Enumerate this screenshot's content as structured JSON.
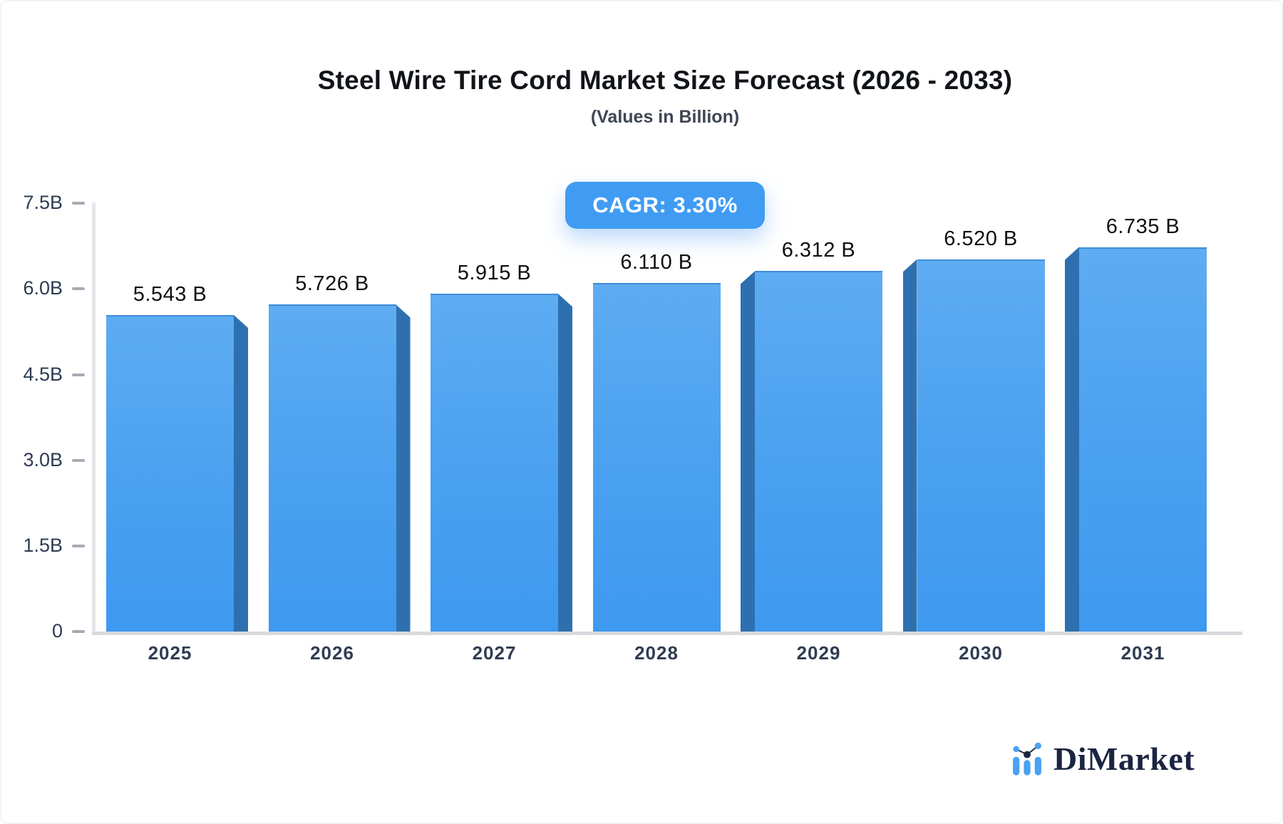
{
  "header": {
    "title": "Steel Wire Tire Cord Market Size Forecast (2026 - 2033)",
    "subtitle": "(Values in Billion)",
    "cagr_badge": "CAGR: 3.30%"
  },
  "footer": {
    "brand": "DiMarket",
    "brand_icon": "bar-chart-trend-icon"
  },
  "colors": {
    "bar_face_top": "#5EACF2",
    "bar_face_bottom": "#3E99F0",
    "bar_side": "#2E70AF",
    "badge_bg": "#409CF3",
    "axis_gray": "#D8DADE",
    "tick_text": "#2E3B52",
    "brand_navy": "#1B2540",
    "logo_blue": "#4BA1F2"
  },
  "chart_data": {
    "type": "bar",
    "title": "Steel Wire Tire Cord Market Size Forecast (2026 - 2033)",
    "subtitle": "(Values in Billion)",
    "unit": "Billion",
    "cagr": "3.30%",
    "categories": [
      "2025",
      "2026",
      "2027",
      "2028",
      "2029",
      "2030",
      "2031"
    ],
    "values": [
      5.543,
      5.726,
      5.915,
      6.11,
      6.312,
      6.52,
      6.735
    ],
    "value_labels": [
      "5.543 B",
      "5.726 B",
      "5.915 B",
      "6.110 B",
      "6.312 B",
      "6.520 B",
      "6.735 B"
    ],
    "ylim": [
      0,
      7.5
    ],
    "yticks": [
      0,
      1.5,
      3.0,
      4.5,
      6.0,
      7.5
    ],
    "ytick_labels": [
      "0",
      "1.5B",
      "3.0B",
      "4.5B",
      "6.0B",
      "7.5B"
    ],
    "grid": false,
    "legend": false,
    "bar_style": "3d-perspective-center-vanishing"
  }
}
